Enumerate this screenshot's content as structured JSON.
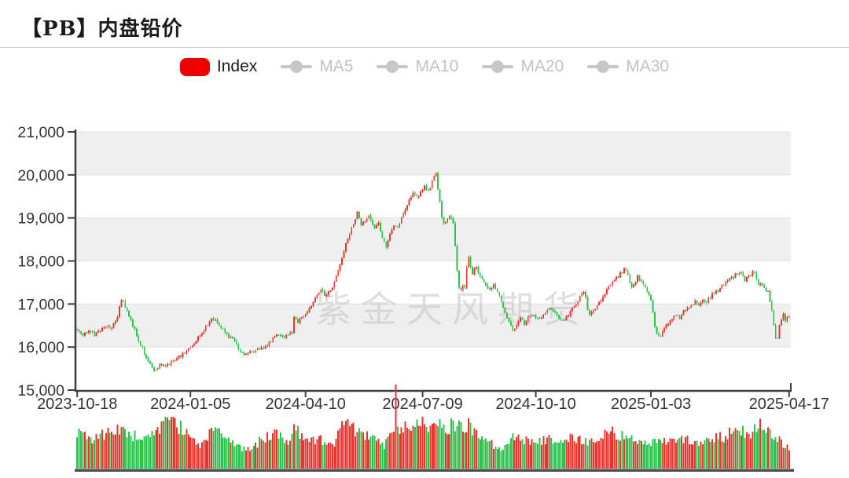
{
  "header": {
    "title": "【PB】内盘铅价"
  },
  "legend": {
    "items": [
      {
        "label": "Index",
        "active": true
      },
      {
        "label": "MA5",
        "active": false
      },
      {
        "label": "MA10",
        "active": false
      },
      {
        "label": "MA20",
        "active": false
      },
      {
        "label": "MA30",
        "active": false
      }
    ]
  },
  "watermark": "紫金天风期货",
  "chart_data": {
    "type": "candlestick",
    "title": "【PB】内盘铅价",
    "legend_entries": [
      "Index",
      "MA5",
      "MA10",
      "MA20",
      "MA30"
    ],
    "colors": {
      "up": "#e8352e",
      "down": "#2dc24e",
      "legend_index": "#ee0000",
      "inactive_legend": "#c2c2c2",
      "band": "#efeff0",
      "gridline": "#e3e3e3",
      "axis": "#3f3f3f",
      "tick_label": "#333333",
      "watermark": "#c5c5c5",
      "volume_baseline": "#4e4e4e"
    },
    "y_axis": {
      "min": 15000,
      "max": 21000,
      "ticks": [
        {
          "label": "21,000",
          "value": 21000
        },
        {
          "label": "20,000",
          "value": 20000
        },
        {
          "label": "19,000",
          "value": 19000
        },
        {
          "label": "18,000",
          "value": 18000
        },
        {
          "label": "17,000",
          "value": 17000
        },
        {
          "label": "16,000",
          "value": 16000
        },
        {
          "label": "15,000",
          "value": 15000
        }
      ]
    },
    "grid_bands_between": [
      [
        21000,
        20000
      ],
      [
        19000,
        18000
      ],
      [
        17000,
        16000
      ]
    ],
    "x_axis": {
      "num_points": 372,
      "range": [
        "2023-10-18",
        "2025-04-17"
      ],
      "ticks": [
        {
          "label": "2023-10-18",
          "i": 0
        },
        {
          "label": "2024-01-05",
          "i": 59
        },
        {
          "label": "2024-04-10",
          "i": 119
        },
        {
          "label": "2024-07-09",
          "i": 180
        },
        {
          "label": "2024-10-10",
          "i": 239
        },
        {
          "label": "2025-01-03",
          "i": 299
        },
        {
          "label": "2025-04-17",
          "i": 371
        }
      ]
    },
    "price_close_anchors": [
      [
        0,
        16400
      ],
      [
        3,
        16280
      ],
      [
        6,
        16420
      ],
      [
        9,
        16300
      ],
      [
        12,
        16380
      ],
      [
        15,
        16500
      ],
      [
        18,
        16420
      ],
      [
        21,
        16700
      ],
      [
        23,
        17120
      ],
      [
        25,
        16950
      ],
      [
        27,
        16700
      ],
      [
        30,
        16400
      ],
      [
        33,
        16050
      ],
      [
        36,
        15750
      ],
      [
        40,
        15480
      ],
      [
        43,
        15560
      ],
      [
        46,
        15580
      ],
      [
        50,
        15680
      ],
      [
        54,
        15800
      ],
      [
        58,
        15950
      ],
      [
        62,
        16150
      ],
      [
        66,
        16400
      ],
      [
        69,
        16600
      ],
      [
        71,
        16650
      ],
      [
        74,
        16480
      ],
      [
        78,
        16280
      ],
      [
        82,
        16120
      ],
      [
        85,
        15900
      ],
      [
        88,
        15830
      ],
      [
        92,
        15900
      ],
      [
        96,
        15980
      ],
      [
        100,
        16100
      ],
      [
        104,
        16280
      ],
      [
        108,
        16230
      ],
      [
        112,
        16320
      ],
      [
        113,
        16720
      ],
      [
        115,
        16600
      ],
      [
        117,
        16680
      ],
      [
        119,
        16760
      ],
      [
        122,
        16950
      ],
      [
        125,
        17180
      ],
      [
        127,
        17320
      ],
      [
        130,
        17180
      ],
      [
        133,
        17420
      ],
      [
        136,
        17750
      ],
      [
        139,
        18250
      ],
      [
        142,
        18650
      ],
      [
        144,
        18900
      ],
      [
        146,
        19120
      ],
      [
        148,
        18820
      ],
      [
        150,
        18920
      ],
      [
        152,
        19020
      ],
      [
        155,
        18780
      ],
      [
        157,
        18880
      ],
      [
        159,
        18550
      ],
      [
        161,
        18320
      ],
      [
        163,
        18600
      ],
      [
        165,
        18850
      ],
      [
        167,
        18800
      ],
      [
        169,
        19000
      ],
      [
        171,
        19200
      ],
      [
        173,
        19400
      ],
      [
        175,
        19620
      ],
      [
        177,
        19480
      ],
      [
        179,
        19600
      ],
      [
        181,
        19720
      ],
      [
        183,
        19600
      ],
      [
        185,
        19850
      ],
      [
        187,
        20020
      ],
      [
        188,
        19700
      ],
      [
        189,
        19350
      ],
      [
        190,
        19050
      ],
      [
        191,
        18850
      ],
      [
        193,
        18980
      ],
      [
        195,
        19020
      ],
      [
        196,
        18850
      ],
      [
        197,
        18350
      ],
      [
        198,
        17750
      ],
      [
        199,
        17420
      ],
      [
        200,
        17320
      ],
      [
        201,
        17420
      ],
      [
        202,
        17360
      ],
      [
        203,
        17820
      ],
      [
        204,
        18120
      ],
      [
        205,
        17880
      ],
      [
        206,
        17720
      ],
      [
        207,
        17820
      ],
      [
        208,
        17860
      ],
      [
        209,
        17720
      ],
      [
        211,
        17600
      ],
      [
        213,
        17420
      ],
      [
        215,
        17320
      ],
      [
        217,
        17460
      ],
      [
        219,
        17260
      ],
      [
        221,
        17050
      ],
      [
        223,
        16820
      ],
      [
        225,
        16600
      ],
      [
        227,
        16380
      ],
      [
        229,
        16500
      ],
      [
        231,
        16650
      ],
      [
        233,
        16560
      ],
      [
        235,
        16700
      ],
      [
        237,
        16780
      ],
      [
        239,
        16700
      ],
      [
        241,
        16620
      ],
      [
        243,
        16720
      ],
      [
        245,
        16880
      ],
      [
        247,
        16920
      ],
      [
        249,
        16780
      ],
      [
        251,
        16660
      ],
      [
        253,
        16600
      ],
      [
        255,
        16700
      ],
      [
        257,
        16820
      ],
      [
        259,
        16920
      ],
      [
        261,
        17080
      ],
      [
        263,
        17220
      ],
      [
        264,
        17320
      ],
      [
        265,
        17120
      ],
      [
        266,
        16880
      ],
      [
        267,
        16760
      ],
      [
        269,
        16820
      ],
      [
        271,
        16950
      ],
      [
        273,
        17100
      ],
      [
        275,
        17250
      ],
      [
        277,
        17400
      ],
      [
        279,
        17500
      ],
      [
        281,
        17600
      ],
      [
        283,
        17720
      ],
      [
        285,
        17800
      ],
      [
        286,
        17780
      ],
      [
        287,
        17680
      ],
      [
        288,
        17540
      ],
      [
        289,
        17420
      ],
      [
        291,
        17520
      ],
      [
        292,
        17700
      ],
      [
        293,
        17580
      ],
      [
        295,
        17440
      ],
      [
        297,
        17300
      ],
      [
        299,
        17120
      ],
      [
        300,
        16820
      ],
      [
        301,
        16520
      ],
      [
        302,
        16320
      ],
      [
        304,
        16260
      ],
      [
        306,
        16420
      ],
      [
        308,
        16560
      ],
      [
        310,
        16660
      ],
      [
        312,
        16760
      ],
      [
        314,
        16700
      ],
      [
        316,
        16820
      ],
      [
        318,
        16900
      ],
      [
        320,
        16960
      ],
      [
        322,
        17060
      ],
      [
        324,
        17000
      ],
      [
        326,
        17120
      ],
      [
        328,
        17060
      ],
      [
        330,
        17160
      ],
      [
        332,
        17260
      ],
      [
        334,
        17320
      ],
      [
        336,
        17420
      ],
      [
        338,
        17500
      ],
      [
        340,
        17560
      ],
      [
        342,
        17640
      ],
      [
        344,
        17700
      ],
      [
        346,
        17760
      ],
      [
        347,
        17660
      ],
      [
        348,
        17560
      ],
      [
        350,
        17620
      ],
      [
        352,
        17720
      ],
      [
        353,
        17760
      ],
      [
        354,
        17600
      ],
      [
        355,
        17460
      ],
      [
        356,
        17520
      ],
      [
        358,
        17400
      ],
      [
        360,
        17260
      ],
      [
        361,
        17080
      ],
      [
        362,
        16880
      ],
      [
        363,
        16480
      ],
      [
        364,
        16250
      ],
      [
        365,
        16180
      ],
      [
        366,
        16480
      ],
      [
        367,
        16640
      ],
      [
        368,
        16760
      ],
      [
        369,
        16620
      ],
      [
        370,
        16660
      ],
      [
        371,
        16700
      ]
    ],
    "volume_envelope_anchors": [
      [
        0,
        0.7
      ],
      [
        4,
        0.64
      ],
      [
        8,
        0.6
      ],
      [
        12,
        0.64
      ],
      [
        16,
        0.68
      ],
      [
        20,
        0.72
      ],
      [
        24,
        0.73
      ],
      [
        28,
        0.67
      ],
      [
        32,
        0.62
      ],
      [
        36,
        0.66
      ],
      [
        40,
        0.7
      ],
      [
        44,
        0.8
      ],
      [
        48,
        0.95
      ],
      [
        50,
        0.97
      ],
      [
        52,
        0.86
      ],
      [
        55,
        0.76
      ],
      [
        58,
        0.66
      ],
      [
        61,
        0.56
      ],
      [
        64,
        0.48
      ],
      [
        67,
        0.55
      ],
      [
        70,
        0.85
      ],
      [
        72,
        0.8
      ],
      [
        75,
        0.68
      ],
      [
        79,
        0.58
      ],
      [
        83,
        0.47
      ],
      [
        87,
        0.38
      ],
      [
        91,
        0.42
      ],
      [
        95,
        0.52
      ],
      [
        99,
        0.62
      ],
      [
        103,
        0.66
      ],
      [
        107,
        0.6
      ],
      [
        110,
        0.54
      ],
      [
        113,
        0.76
      ],
      [
        116,
        0.7
      ],
      [
        119,
        0.66
      ],
      [
        123,
        0.6
      ],
      [
        127,
        0.55
      ],
      [
        131,
        0.48
      ],
      [
        134,
        0.44
      ],
      [
        137,
        0.75
      ],
      [
        140,
        0.83
      ],
      [
        143,
        0.79
      ],
      [
        146,
        0.74
      ],
      [
        149,
        0.68
      ],
      [
        152,
        0.6
      ],
      [
        155,
        0.54
      ],
      [
        158,
        0.47
      ],
      [
        160,
        0.4
      ],
      [
        163,
        0.7
      ],
      [
        166,
        0.78
      ],
      [
        168,
        0.74
      ],
      [
        170,
        0.8
      ],
      [
        172,
        0.76
      ],
      [
        174,
        0.84
      ],
      [
        176,
        0.8
      ],
      [
        178,
        0.87
      ],
      [
        180,
        0.9
      ],
      [
        182,
        0.84
      ],
      [
        184,
        0.89
      ],
      [
        186,
        0.94
      ],
      [
        188,
        0.97
      ],
      [
        190,
        0.9
      ],
      [
        192,
        0.84
      ],
      [
        194,
        0.79
      ],
      [
        196,
        0.87
      ],
      [
        198,
        0.92
      ],
      [
        200,
        0.84
      ],
      [
        202,
        0.77
      ],
      [
        204,
        0.84
      ],
      [
        206,
        0.78
      ],
      [
        208,
        0.7
      ],
      [
        210,
        0.64
      ],
      [
        212,
        0.58
      ],
      [
        214,
        0.53
      ],
      [
        216,
        0.48
      ],
      [
        218,
        0.43
      ],
      [
        220,
        0.38
      ],
      [
        222,
        0.34
      ],
      [
        224,
        0.48
      ],
      [
        226,
        0.56
      ],
      [
        228,
        0.6
      ],
      [
        230,
        0.58
      ],
      [
        233,
        0.54
      ],
      [
        236,
        0.51
      ],
      [
        239,
        0.48
      ],
      [
        242,
        0.54
      ],
      [
        245,
        0.59
      ],
      [
        248,
        0.55
      ],
      [
        251,
        0.51
      ],
      [
        254,
        0.55
      ],
      [
        257,
        0.6
      ],
      [
        260,
        0.58
      ],
      [
        263,
        0.54
      ],
      [
        266,
        0.49
      ],
      [
        269,
        0.55
      ],
      [
        272,
        0.62
      ],
      [
        275,
        0.66
      ],
      [
        278,
        0.71
      ],
      [
        281,
        0.68
      ],
      [
        284,
        0.63
      ],
      [
        287,
        0.58
      ],
      [
        290,
        0.53
      ],
      [
        293,
        0.57
      ],
      [
        296,
        0.52
      ],
      [
        299,
        0.49
      ],
      [
        302,
        0.58
      ],
      [
        305,
        0.55
      ],
      [
        308,
        0.52
      ],
      [
        311,
        0.5
      ],
      [
        314,
        0.57
      ],
      [
        317,
        0.6
      ],
      [
        320,
        0.57
      ],
      [
        323,
        0.53
      ],
      [
        326,
        0.56
      ],
      [
        329,
        0.6
      ],
      [
        332,
        0.58
      ],
      [
        335,
        0.6
      ],
      [
        338,
        0.64
      ],
      [
        341,
        0.69
      ],
      [
        344,
        0.74
      ],
      [
        347,
        0.7
      ],
      [
        350,
        0.66
      ],
      [
        352,
        0.72
      ],
      [
        354,
        0.86
      ],
      [
        356,
        0.88
      ],
      [
        358,
        0.8
      ],
      [
        360,
        0.74
      ],
      [
        362,
        0.68
      ],
      [
        364,
        0.64
      ],
      [
        366,
        0.58
      ],
      [
        368,
        0.5
      ],
      [
        370,
        0.45
      ],
      [
        371,
        0.43
      ]
    ],
    "volume_spikes": [
      [
        166,
        1.62
      ]
    ]
  }
}
